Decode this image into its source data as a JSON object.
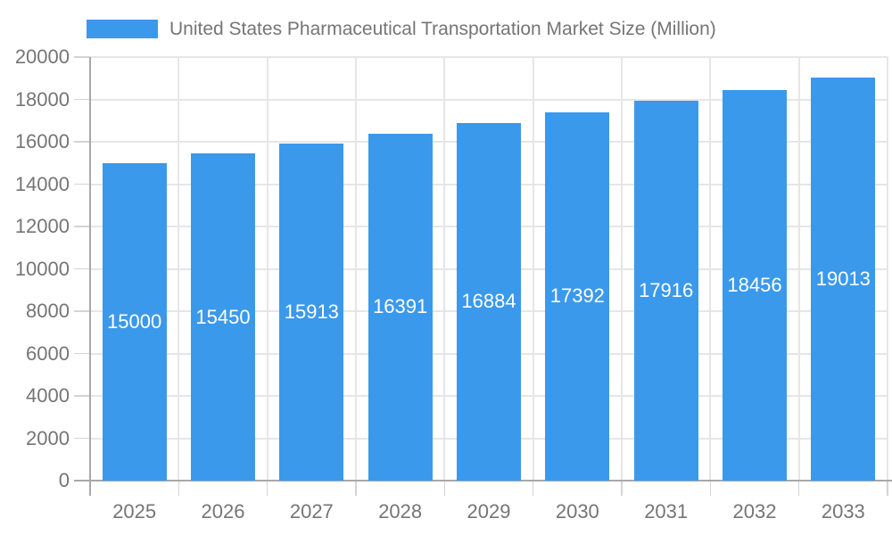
{
  "legend": {
    "series_label": "United States Pharmaceutical Transportation Market Size (Million)",
    "swatch_color": "#3B99EB"
  },
  "chart_data": {
    "type": "bar",
    "title": "United States Pharmaceutical Transportation Market Size (Million)",
    "categories": [
      "2025",
      "2026",
      "2027",
      "2028",
      "2029",
      "2030",
      "2031",
      "2032",
      "2033"
    ],
    "values": [
      15000,
      15450,
      15913,
      16391,
      16884,
      17392,
      17916,
      18456,
      19013
    ],
    "xlabel": "",
    "ylabel": "",
    "ylim": [
      0,
      20000
    ],
    "ytick_step": 2000,
    "y_ticks": [
      0,
      2000,
      4000,
      6000,
      8000,
      10000,
      12000,
      14000,
      16000,
      18000,
      20000
    ],
    "grid": true,
    "legend_position": "top-left",
    "bar_color": "#3B99EB",
    "value_label_color": "#FFFFFF",
    "axis_text_color": "#757575"
  }
}
